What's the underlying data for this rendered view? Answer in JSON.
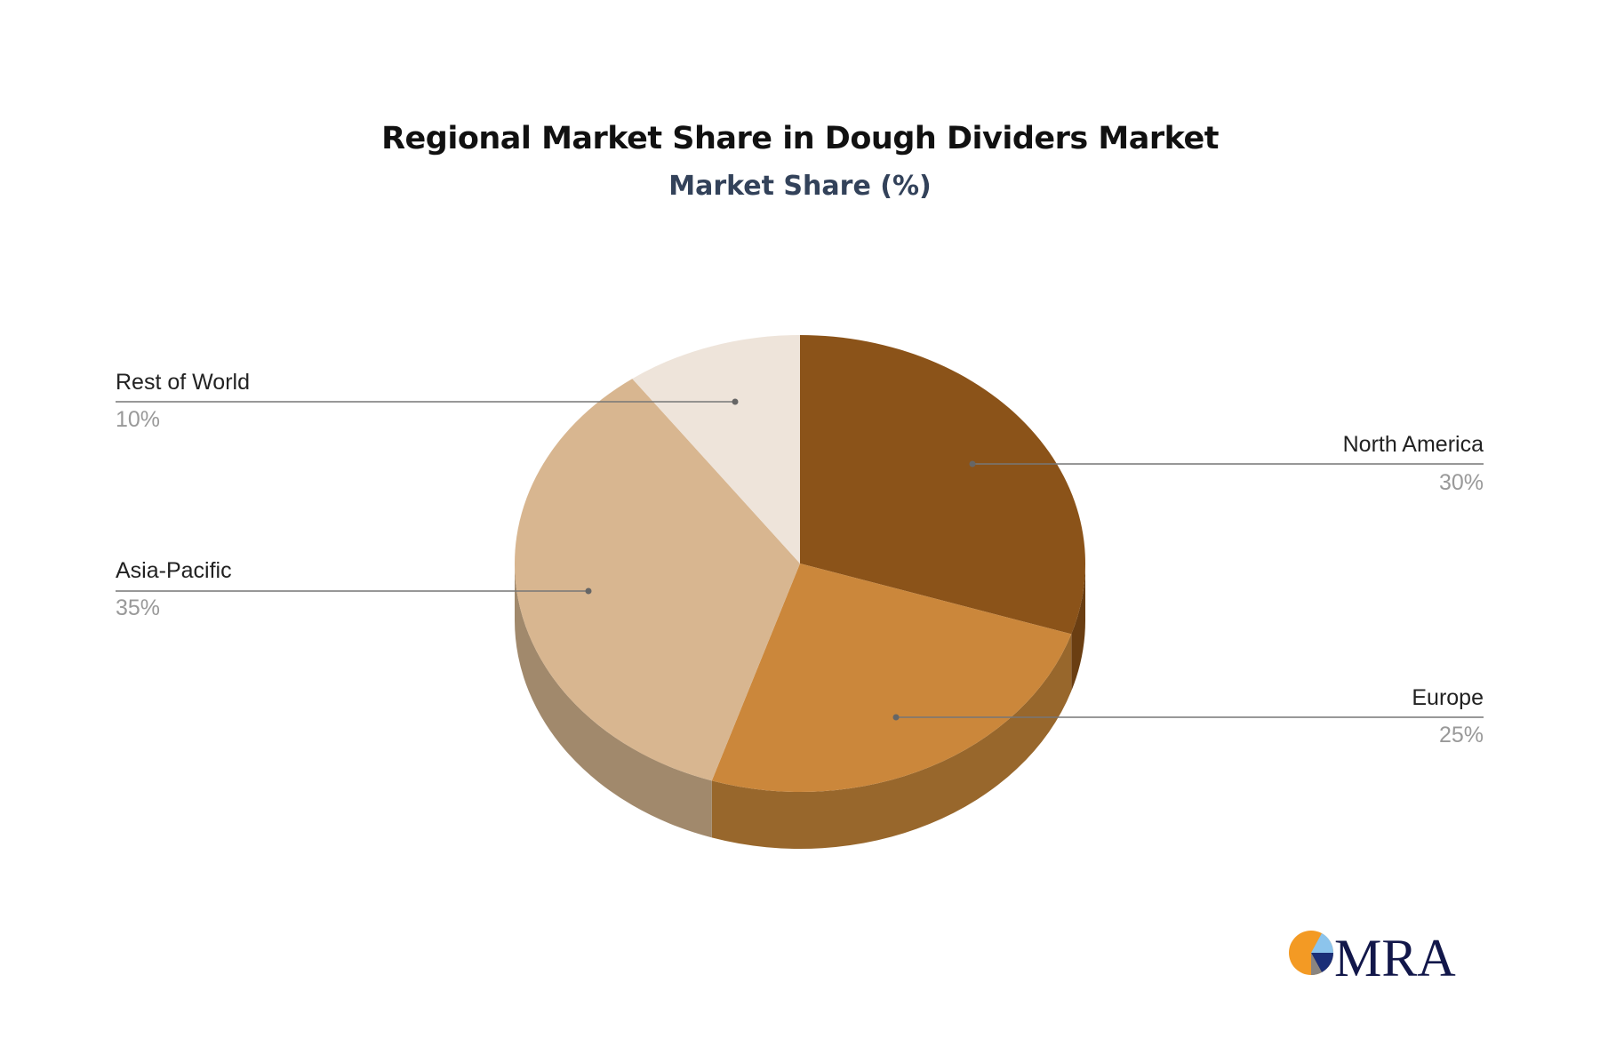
{
  "chart_data": {
    "type": "pie",
    "title": "Regional Market Share in Dough Dividers Market",
    "subtitle": "Market Share (%)",
    "slices": [
      {
        "label": "North America",
        "value": 30,
        "display": "30%",
        "color": "#8B5319",
        "side": "#6A3E12"
      },
      {
        "label": "Europe",
        "value": 25,
        "display": "25%",
        "color": "#CB873B",
        "side": "#98672C"
      },
      {
        "label": "Asia-Pacific",
        "value": 35,
        "display": "35%",
        "color": "#D8B690",
        "side": "#A1896C"
      },
      {
        "label": "Rest of World",
        "value": 10,
        "display": "10%",
        "color": "#EEE4DA",
        "side": "#BDB3A9"
      }
    ],
    "style": "3d",
    "legend": "none (leader-line labels)"
  },
  "logo": {
    "text": "MRA"
  }
}
